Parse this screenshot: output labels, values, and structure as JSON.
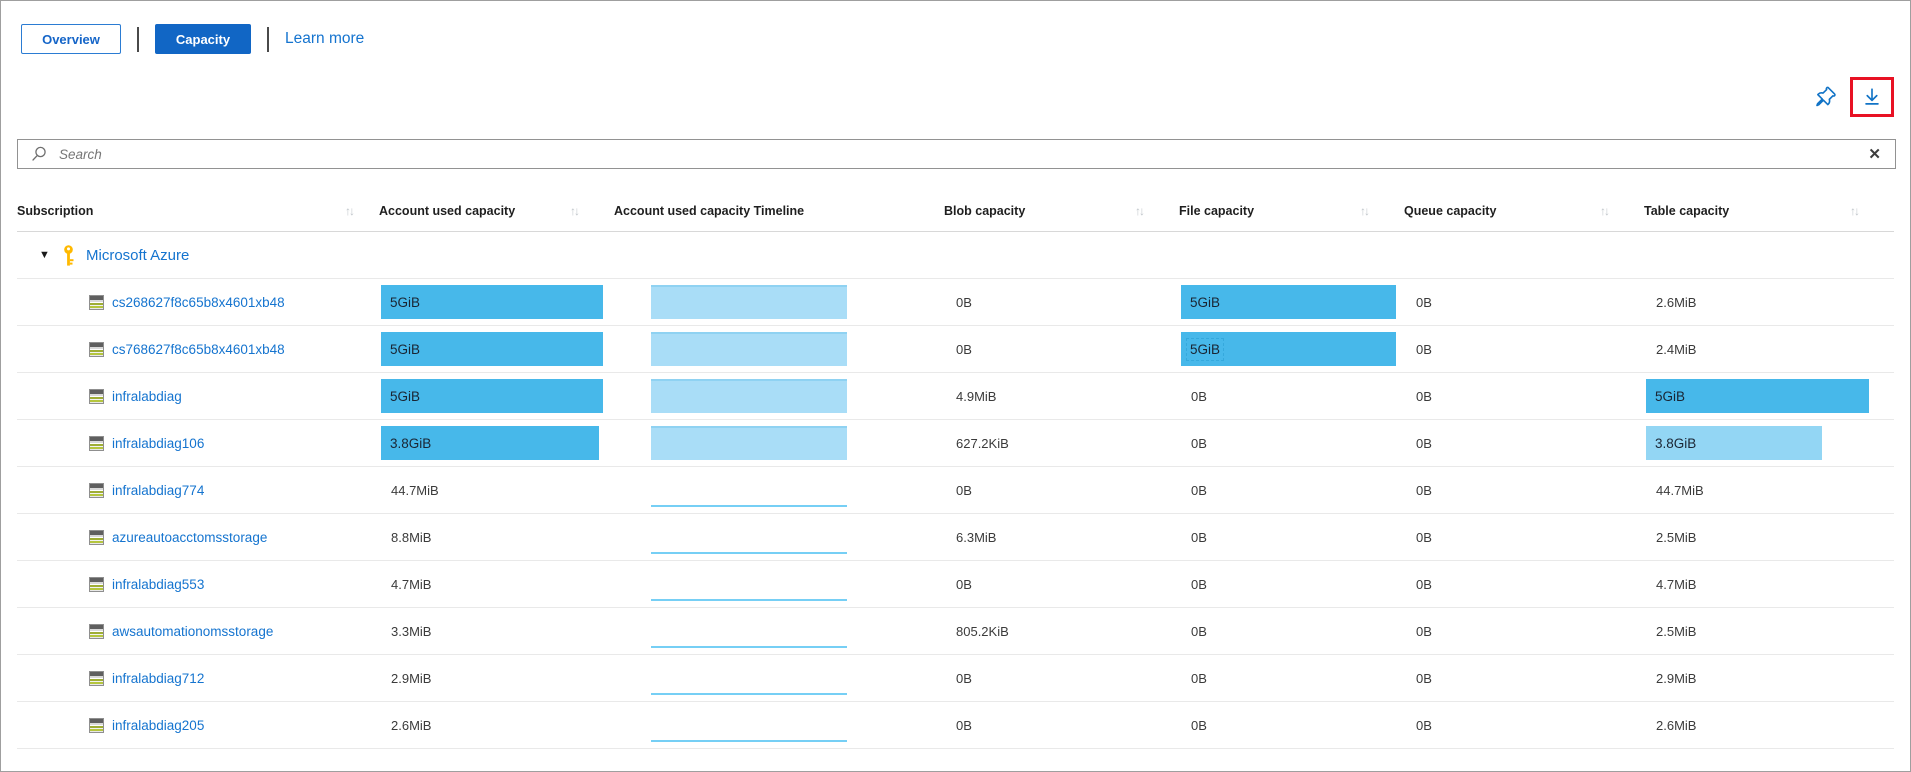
{
  "page": {
    "tabs": {
      "overview": "Overview",
      "capacity": "Capacity",
      "learn_more": "Learn more"
    }
  },
  "toolbar": {
    "pin_icon": "pin",
    "download_icon": "download",
    "download_highlighted": true
  },
  "search": {
    "placeholder": "Search",
    "value": "",
    "clear_icon": "✕"
  },
  "table": {
    "sort_icon": "↑↓",
    "columns": [
      {
        "key": "subscription",
        "label": "Subscription",
        "sort": true
      },
      {
        "key": "account",
        "label": "Account used capacity",
        "sort": true
      },
      {
        "key": "timeline",
        "label": "Account used capacity Timeline",
        "sort": false
      },
      {
        "key": "blob",
        "label": "Blob capacity",
        "sort": true
      },
      {
        "key": "file",
        "label": "File capacity",
        "sort": true
      },
      {
        "key": "queue",
        "label": "Queue capacity",
        "sort": true
      },
      {
        "key": "table",
        "label": "Table capacity",
        "sort": true
      }
    ],
    "group": {
      "caret": "▼",
      "name": "Microsoft Azure",
      "expanded": true
    },
    "rows": [
      {
        "name": "cs268627f8c65b8x4601xb48",
        "account": {
          "text": "5GiB",
          "fill": 1
        },
        "timeline": "filled",
        "blob": {
          "text": "0B"
        },
        "file": {
          "text": "5GiB",
          "fill": 0.97
        },
        "queue": {
          "text": "0B"
        },
        "table": {
          "text": "2.6MiB"
        }
      },
      {
        "name": "cs768627f8c65b8x4601xb48",
        "account": {
          "text": "5GiB",
          "fill": 1
        },
        "timeline": "filled",
        "blob": {
          "text": "0B"
        },
        "file": {
          "text": "5GiB",
          "fill": 0.97,
          "focus": true
        },
        "queue": {
          "text": "0B"
        },
        "table": {
          "text": "2.4MiB"
        }
      },
      {
        "name": "infralabdiag",
        "account": {
          "text": "5GiB",
          "fill": 1
        },
        "timeline": "filled",
        "blob": {
          "text": "4.9MiB"
        },
        "file": {
          "text": "0B"
        },
        "queue": {
          "text": "0B"
        },
        "table": {
          "text": "5GiB",
          "fill": 0.98
        }
      },
      {
        "name": "infralabdiag106",
        "account": {
          "text": "3.8GiB",
          "fill": 0.98
        },
        "timeline": "filled",
        "blob": {
          "text": "627.2KiB"
        },
        "file": {
          "text": "0B"
        },
        "queue": {
          "text": "0B"
        },
        "table": {
          "text": "3.8GiB",
          "fill": 0.77,
          "tone": "light"
        }
      },
      {
        "name": "infralabdiag774",
        "account": {
          "text": "44.7MiB"
        },
        "timeline": "line",
        "blob": {
          "text": "0B"
        },
        "file": {
          "text": "0B"
        },
        "queue": {
          "text": "0B"
        },
        "table": {
          "text": "44.7MiB"
        }
      },
      {
        "name": "azureautoacctomsstorage",
        "account": {
          "text": "8.8MiB"
        },
        "timeline": "line",
        "blob": {
          "text": "6.3MiB"
        },
        "file": {
          "text": "0B"
        },
        "queue": {
          "text": "0B"
        },
        "table": {
          "text": "2.5MiB"
        }
      },
      {
        "name": "infralabdiag553",
        "account": {
          "text": "4.7MiB"
        },
        "timeline": "line",
        "blob": {
          "text": "0B"
        },
        "file": {
          "text": "0B"
        },
        "queue": {
          "text": "0B"
        },
        "table": {
          "text": "4.7MiB"
        }
      },
      {
        "name": "awsautomationomsstorage",
        "account": {
          "text": "3.3MiB"
        },
        "timeline": "line",
        "blob": {
          "text": "805.2KiB"
        },
        "file": {
          "text": "0B"
        },
        "queue": {
          "text": "0B"
        },
        "table": {
          "text": "2.5MiB"
        }
      },
      {
        "name": "infralabdiag712",
        "account": {
          "text": "2.9MiB"
        },
        "timeline": "line",
        "blob": {
          "text": "0B"
        },
        "file": {
          "text": "0B"
        },
        "queue": {
          "text": "0B"
        },
        "table": {
          "text": "2.9MiB"
        }
      },
      {
        "name": "infralabdiag205",
        "account": {
          "text": "2.6MiB"
        },
        "timeline": "line",
        "blob": {
          "text": "0B"
        },
        "file": {
          "text": "0B"
        },
        "queue": {
          "text": "0B"
        },
        "table": {
          "text": "2.6MiB"
        }
      }
    ]
  },
  "colors": {
    "accent_blue": "#1166C5",
    "link_blue": "#1574CF",
    "bar_medium": "#47B8EA",
    "bar_light": "#93D6F4",
    "timeline_fill": "#A9DDF7",
    "timeline_fill_edge": "#8FD2F2",
    "timeline_line": "#76CFF5",
    "highlight_red": "#E81123"
  }
}
